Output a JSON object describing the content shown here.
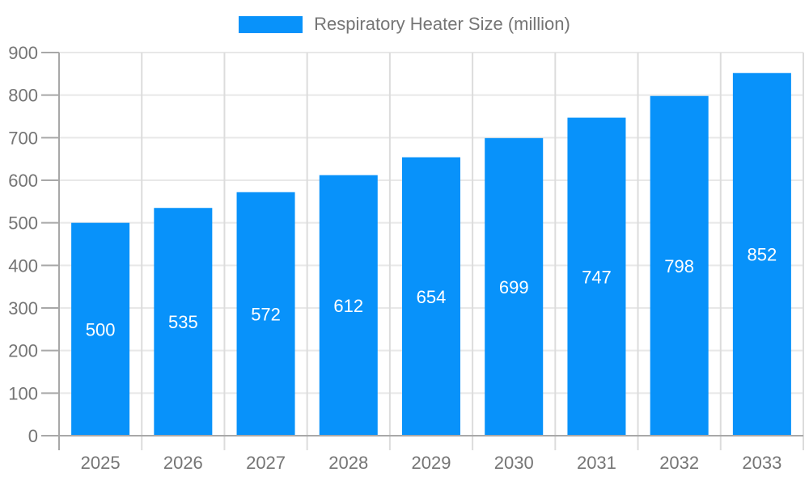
{
  "chart_data": {
    "type": "bar",
    "series_name": "Respiratory Heater Size (million)",
    "categories": [
      "2025",
      "2026",
      "2027",
      "2028",
      "2029",
      "2030",
      "2031",
      "2032",
      "2033"
    ],
    "values": [
      500,
      535,
      572,
      612,
      654,
      699,
      747,
      798,
      852
    ],
    "title": "",
    "xlabel": "",
    "ylabel": "",
    "ylim": [
      0,
      900
    ],
    "y_ticks": [
      0,
      100,
      200,
      300,
      400,
      500,
      600,
      700,
      800,
      900
    ],
    "grid": true,
    "legend_position": "top-center",
    "value_labels": "inside-center",
    "colors": {
      "bar": "#0892fa",
      "grid_h": "#e8e8e8",
      "grid_v": "#dcdcdc",
      "axis": "#a8a8a8",
      "axis_text": "#757575",
      "value_text": "#ffffff",
      "background": "#ffffff"
    }
  }
}
